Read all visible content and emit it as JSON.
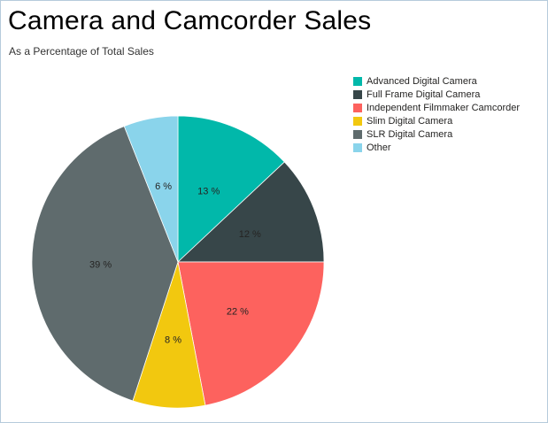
{
  "header": {
    "title": "Camera and Camcorder Sales",
    "subtitle": "As a Percentage of Total Sales"
  },
  "chart_data": {
    "type": "pie",
    "title": "Camera and Camcorder Sales",
    "subtitle": "As a Percentage of Total Sales",
    "unit": "%",
    "direction": "clockwise",
    "start_angle_deg": 0,
    "legend_position": "top-right",
    "series": [
      {
        "name": "Advanced Digital Camera",
        "value": 13,
        "label": "13 %",
        "color": "#01B8AA"
      },
      {
        "name": "Full Frame Digital Camera",
        "value": 12,
        "label": "12 %",
        "color": "#374649"
      },
      {
        "name": "Independent Filmmaker Camcorder",
        "value": 22,
        "label": "22 %",
        "color": "#FD625E"
      },
      {
        "name": "Slim Digital Camera",
        "value": 8,
        "label": "8 %",
        "color": "#F2C80F"
      },
      {
        "name": "SLR Digital Camera",
        "value": 39,
        "label": "39 %",
        "color": "#5F6B6D"
      },
      {
        "name": "Other",
        "value": 6,
        "label": "6 %",
        "color": "#8AD4EB"
      }
    ]
  }
}
